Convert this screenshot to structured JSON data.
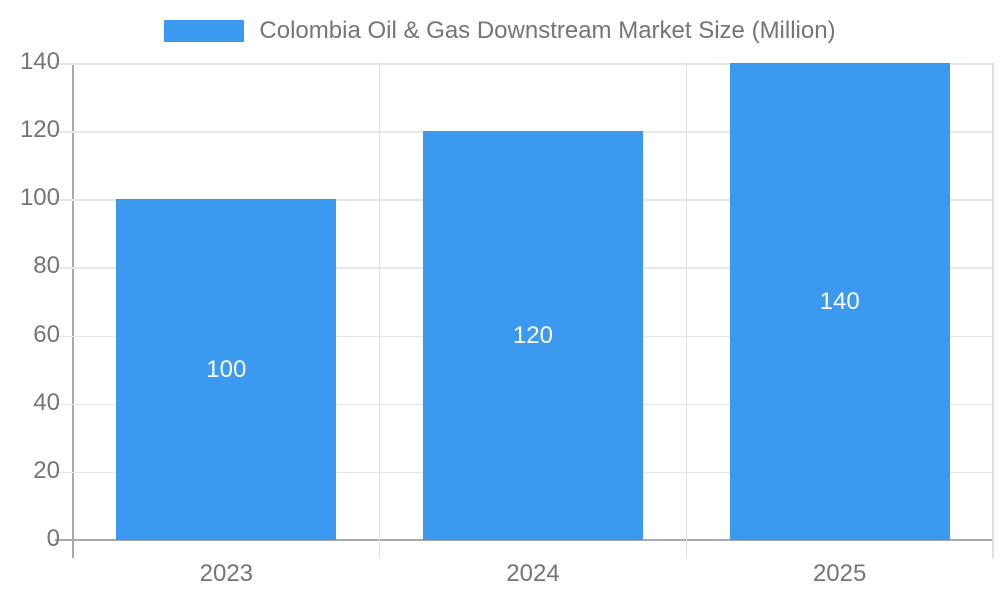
{
  "legend": {
    "label": "Colombia Oil & Gas Downstream Market Size (Million)"
  },
  "chart_data": {
    "type": "bar",
    "title": "Colombia Oil & Gas Downstream Market Size (Million)",
    "categories": [
      "2023",
      "2024",
      "2025"
    ],
    "series": [
      {
        "name": "Colombia Oil & Gas Downstream Market Size (Million)",
        "values": [
          100,
          120,
          140
        ],
        "color": "#3b99f0"
      }
    ],
    "xlabel": "",
    "ylabel": "",
    "ylim": [
      0,
      140
    ],
    "yticks": [
      0,
      20,
      40,
      60,
      80,
      100,
      120,
      140
    ],
    "grid": true,
    "legend_position": "top",
    "data_labels": {
      "show": true,
      "position": "inside-center",
      "color": "#ffffff"
    }
  },
  "colors": {
    "bar": "#3b99f0",
    "text": "#757575",
    "axis": "#a9a9a9",
    "hgrid": "#e8e8e8",
    "vgrid": "#e0e0e0",
    "background": "#ffffff",
    "data_label": "#ffffff"
  }
}
